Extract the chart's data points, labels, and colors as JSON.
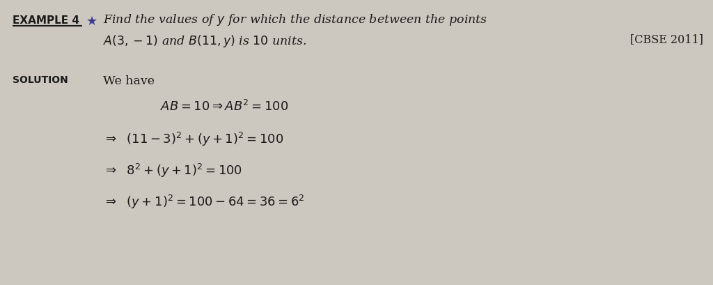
{
  "bg_color": "#cdc8bf",
  "font_color": "#1a1a1a",
  "title_label": "EXAMPLE 4",
  "star_color": "#3d3d8f",
  "problem_line1": "Find the values of $y$ for which the distance between the points",
  "problem_line2": "$A(3, -1)$ and $B(11, y)$ is $10$ units.",
  "cbse_ref": "[CBSE 2011]",
  "solution_label": "SOLUTION",
  "solution_text": "We have",
  "line1": "$AB = 10 \\Rightarrow AB^2 = 100$",
  "line2": "$\\Rightarrow\\ \\ (11-3)^2+(y+1)^2=100$",
  "line3": "$\\Rightarrow\\ \\ 8^2+(y+1)^2=100$",
  "line4": "$\\Rightarrow\\ \\ (y+1)^2=100-64=36=6^2$",
  "fig_width": 10.24,
  "fig_height": 4.1,
  "dpi": 100
}
